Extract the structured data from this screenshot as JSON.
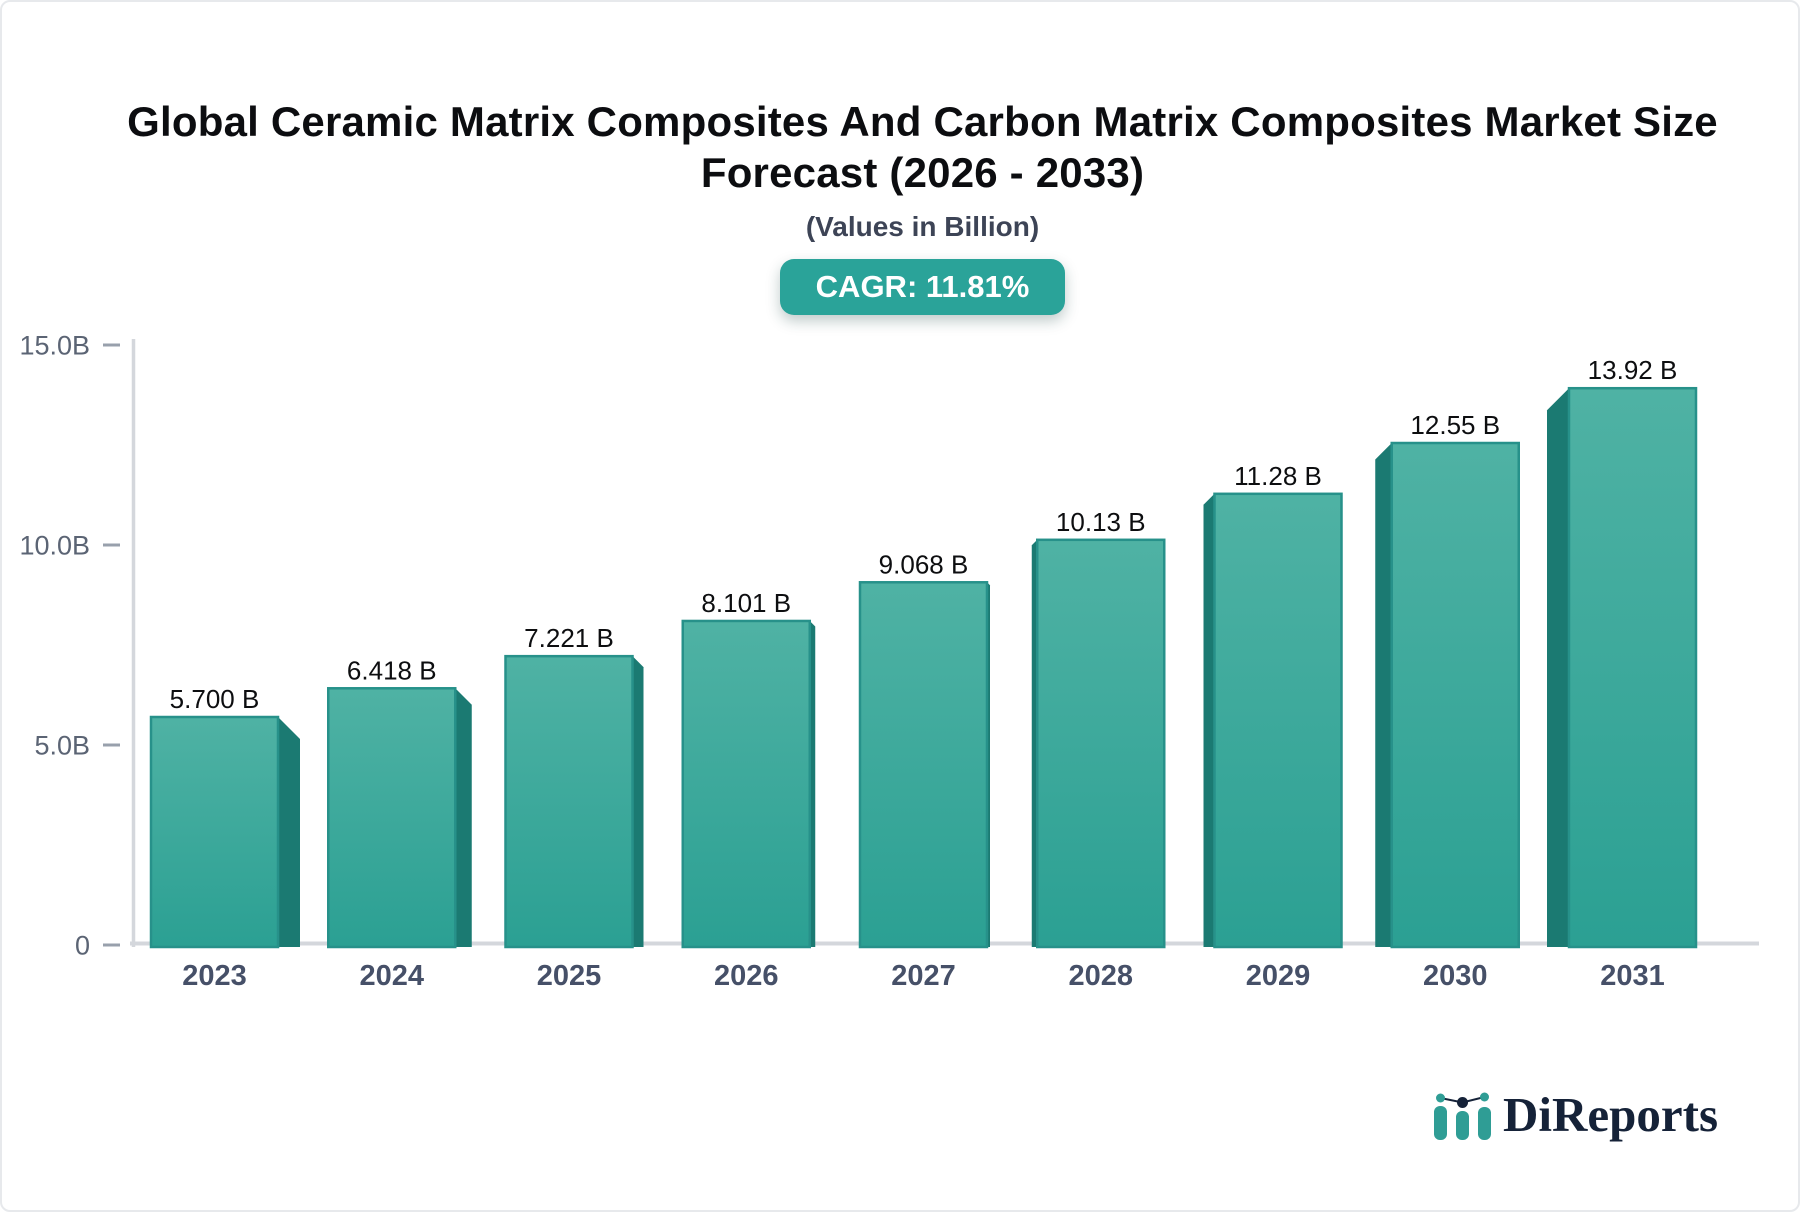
{
  "header": {
    "title_line1": "Global Ceramic Matrix Composites And Carbon Matrix Composites Market Size",
    "title_line2": "Forecast (2026 - 2033)",
    "subtitle": "(Values in Billion)",
    "cagr_badge": "CAGR: 11.81%",
    "badge_color": "#2aa399"
  },
  "chart_data": {
    "type": "bar",
    "title": "Global Ceramic Matrix Composites And Carbon Matrix Composites Market Size Forecast (2026 - 2033)",
    "subtitle": "(Values in Billion)",
    "cagr_percent": 11.81,
    "categories": [
      "2023",
      "2024",
      "2025",
      "2026",
      "2027",
      "2028",
      "2029",
      "2030",
      "2031"
    ],
    "values": [
      5.7,
      6.418,
      7.221,
      8.101,
      9.068,
      10.13,
      11.28,
      12.55,
      13.92
    ],
    "value_labels": [
      "5.700 B",
      "6.418 B",
      "7.221 B",
      "8.101 B",
      "9.068 B",
      "10.13 B",
      "11.28 B",
      "12.55 B",
      "13.92 B"
    ],
    "xlabel": "",
    "ylabel": "",
    "ylim": [
      0,
      15
    ],
    "y_ticks": [
      {
        "value": 0,
        "label": "0"
      },
      {
        "value": 5,
        "label": "5.0B"
      },
      {
        "value": 10,
        "label": "10.0B"
      },
      {
        "value": 15,
        "label": "15.0B"
      }
    ],
    "grid": false,
    "legend": false,
    "bar_style": {
      "face_top_color": "#4fb2a4",
      "face_bottom_color": "#2ba093",
      "side_color": "#1b7a72",
      "edge_color": "#27918a"
    },
    "axis_style": {
      "axis_line_color": "#d4d7dc",
      "tick_dash_color": "#98a0ac"
    }
  },
  "logo": {
    "text": "DiReports",
    "icon": "bar-line-chart-icon",
    "icon_accent_color": "#2f9d95",
    "text_color": "#152238"
  }
}
